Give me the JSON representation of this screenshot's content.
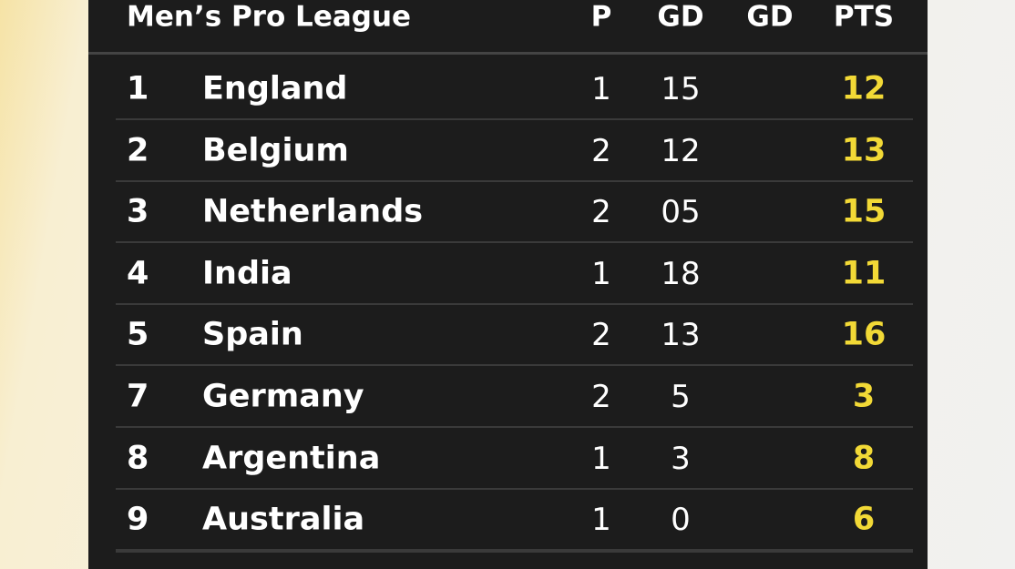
{
  "header": {
    "title": "Men’s Pro League",
    "columns": [
      "P",
      "GD",
      "GD",
      "PTS"
    ]
  },
  "table": {
    "rows": [
      [
        "1",
        "England",
        "1",
        "15",
        "12"
      ],
      [
        "2",
        "Belgium",
        "2",
        "12",
        "13"
      ],
      [
        "3",
        "Netherlands",
        "2",
        "05",
        "15"
      ],
      [
        "4",
        "India",
        "1",
        "18",
        "11"
      ],
      [
        "5",
        "Spain",
        "2",
        "13",
        "16"
      ],
      [
        "7",
        "Germany",
        "2",
        "5",
        "3"
      ],
      [
        "8",
        "Argentina",
        "1",
        "3",
        "8"
      ],
      [
        "9",
        "Australia",
        "1",
        "0",
        "6"
      ]
    ]
  }
}
